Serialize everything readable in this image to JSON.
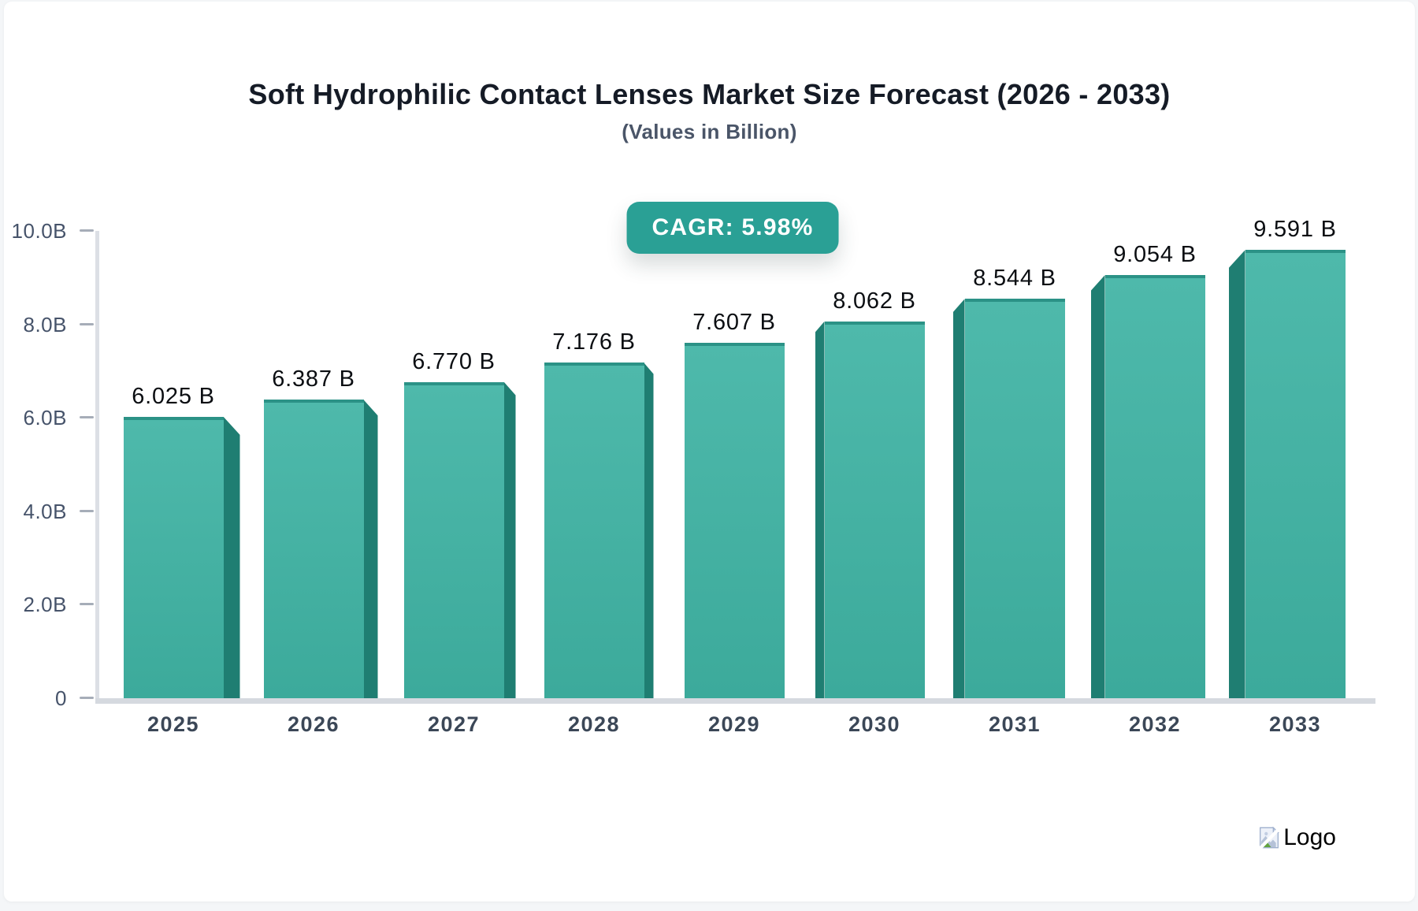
{
  "page": {
    "background_color": "#f4f6f8",
    "card_color": "#ffffff"
  },
  "header": {
    "title": "Soft Hydrophilic Contact Lenses Market Size Forecast (2026 - 2033)",
    "subtitle": "(Values in Billion)"
  },
  "cagr_badge": {
    "label": "CAGR: 5.98%",
    "background_color": "#2aa095",
    "text_color": "#ffffff"
  },
  "chart_data": {
    "type": "bar",
    "title": "Soft Hydrophilic Contact Lenses Market Size Forecast (2026 - 2033)",
    "subtitle": "(Values in Billion)",
    "categories": [
      "2025",
      "2026",
      "2027",
      "2028",
      "2029",
      "2030",
      "2031",
      "2032",
      "2033"
    ],
    "values": [
      6.025,
      6.387,
      6.77,
      7.176,
      7.607,
      8.062,
      8.544,
      9.054,
      9.591
    ],
    "bar_labels": [
      "6.025 B",
      "6.387 B",
      "6.770 B",
      "7.176 B",
      "7.607 B",
      "8.062 B",
      "8.544 B",
      "9.054 B",
      "9.591 B"
    ],
    "xlabel": "",
    "ylabel": "",
    "ylim": [
      0,
      10
    ],
    "yticks": [
      {
        "value": 10,
        "label": "10.0B"
      },
      {
        "value": 8,
        "label": "8.0B"
      },
      {
        "value": 6,
        "label": "6.0B"
      },
      {
        "value": 4,
        "label": "4.0B"
      },
      {
        "value": 2,
        "label": "2.0B"
      },
      {
        "value": 0,
        "label": "0"
      }
    ],
    "grid": false,
    "legend": false,
    "bar_face_gradient_top": "#4eb9ab",
    "bar_face_gradient_bottom": "#3caa9b",
    "bar_top_edge_color": "#2b9286",
    "bar_side_color": "#1f7e72",
    "effect": "pseudo-3d, extruded side toward chart center"
  },
  "footer": {
    "logo_alt_text": "Logo"
  }
}
